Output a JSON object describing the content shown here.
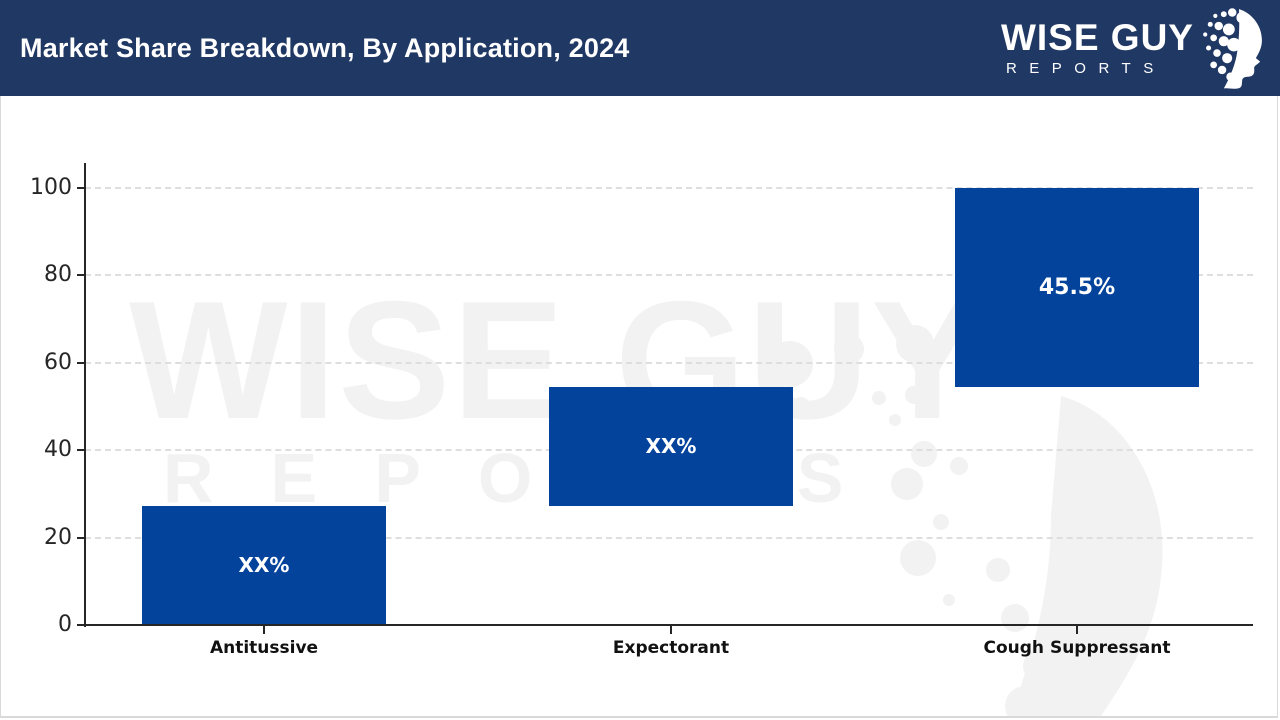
{
  "header": {
    "title": "Market Share Breakdown, By Application, 2024",
    "logo": {
      "name": "WISE GUY",
      "tagline": "REPORTS"
    }
  },
  "watermark": {
    "name": "WISE GUY",
    "tagline": "REPORTS"
  },
  "chart_data": {
    "type": "bar",
    "subtype": "stacked-waterfall-percent",
    "title": "Market Share Breakdown, By Application, 2024",
    "categories": [
      "Antitussive",
      "Expectorant",
      "Cough Suppressant"
    ],
    "segments": [
      {
        "category": "Antitussive",
        "start": 0,
        "end": 27.3,
        "value_label": "XX%"
      },
      {
        "category": "Expectorant",
        "start": 27.3,
        "end": 54.5,
        "value_label": "XX%"
      },
      {
        "category": "Cough Suppressant",
        "start": 54.5,
        "end": 100,
        "value_label": "45.5%"
      }
    ],
    "y_ticks": [
      0,
      20,
      40,
      60,
      80,
      100
    ],
    "ylim": [
      0,
      105.7
    ],
    "xlabel": "",
    "ylabel": "",
    "grid": "horizontal-dashed",
    "legend": "none",
    "bar_color": "#04439c",
    "bar_label_color": "#ffffff"
  },
  "colors": {
    "header_bg": "#203864",
    "bar": "#04439c",
    "axis": "#262626",
    "grid": "#dedede",
    "watermark": "#f2f2f2",
    "frame_border": "#d9d9d9",
    "title_text": "#ffffff"
  }
}
